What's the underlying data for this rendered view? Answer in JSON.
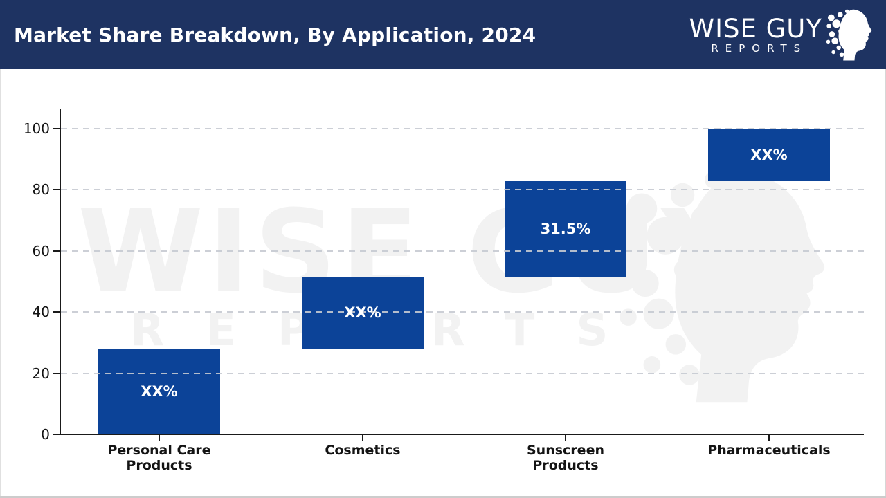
{
  "header": {
    "title": "Market Share Breakdown, By Application, 2024",
    "logo": {
      "name": "WISE GUY",
      "sub": "REPORTS",
      "icon": "face-profile-dots-icon"
    }
  },
  "watermark": {
    "name": "WISE GUY",
    "sub": "REPORTS",
    "icon": "face-profile-dots-icon"
  },
  "chart_data": {
    "type": "bar",
    "variant": "floating-stacked-segments",
    "title": "Market Share Breakdown, By Application, 2024",
    "categories": [
      "Personal Care Products",
      "Cosmetics",
      "Sunscreen Products",
      "Pharmaceuticals"
    ],
    "series": [
      {
        "name": "Market share (%)",
        "segments": [
          {
            "category": "Personal Care Products",
            "start": 0,
            "end": 28,
            "value_label": "XX%"
          },
          {
            "category": "Cosmetics",
            "start": 28,
            "end": 51.5,
            "value_label": "XX%"
          },
          {
            "category": "Sunscreen Products",
            "start": 51.5,
            "end": 83,
            "value_label": "31.5%"
          },
          {
            "category": "Pharmaceuticals",
            "start": 83,
            "end": 100,
            "value_label": "XX%"
          }
        ]
      }
    ],
    "xlabel": "",
    "ylabel": "",
    "ylim": [
      0,
      100
    ],
    "yticks": [
      0,
      20,
      40,
      60,
      80,
      100
    ],
    "grid": "horizontal-dashed",
    "legend": "none",
    "bar_color": "#0c4398",
    "bar_label_color": "#ffffff"
  },
  "colors": {
    "header_bg": "#1e3362",
    "bar": "#0c4398",
    "gridline": "#c6cad2",
    "axis": "#1a1a1a",
    "watermark": "#f2f2f2"
  }
}
